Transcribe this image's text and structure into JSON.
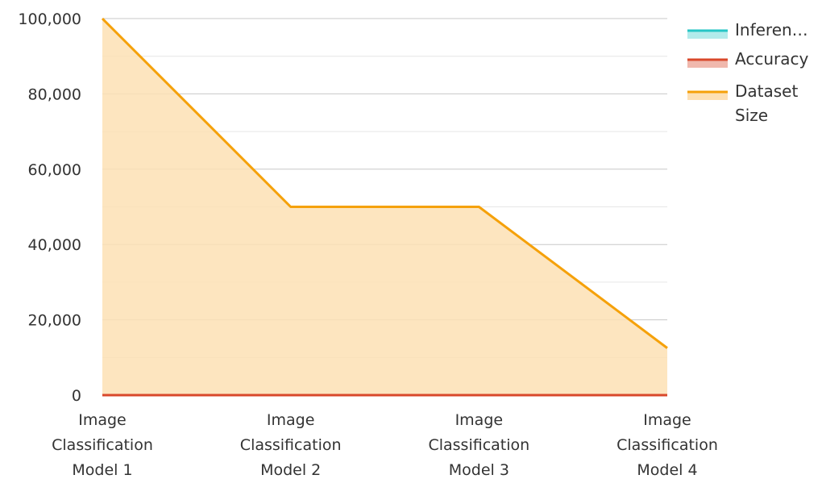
{
  "chart_data": {
    "type": "area",
    "title": "",
    "xlabel": "",
    "ylabel": "",
    "categories": [
      "Image Classification Model 1",
      "Image Classification Model 2",
      "Image Classification Model 3",
      "Image Classification Model 4"
    ],
    "category_lines": [
      [
        "Image",
        "Classification",
        "Model 1"
      ],
      [
        "Image",
        "Classification",
        "Model 2"
      ],
      [
        "Image",
        "Classification",
        "Model 3"
      ],
      [
        "Image",
        "Classification",
        "Model 4"
      ]
    ],
    "ylim": [
      0,
      100000
    ],
    "yticks": [
      0,
      20000,
      40000,
      60000,
      80000,
      100000
    ],
    "ytick_labels": [
      "0",
      "20,000",
      "40,000",
      "60,000",
      "80,000",
      "100,000"
    ],
    "grid": true,
    "legend_position": "right",
    "series": [
      {
        "name": "Inference Time",
        "legend_lines": [
          "Inferen…"
        ],
        "line_color": "#26c6c6",
        "fill_color": "#b2ebeb",
        "values": [
          0.05,
          0.1,
          0.15,
          0.2
        ]
      },
      {
        "name": "Accuracy",
        "legend_lines": [
          "Accuracy"
        ],
        "line_color": "#d9482b",
        "fill_color": "#f0b8ad",
        "values": [
          0.92,
          0.95,
          0.9,
          0.97
        ]
      },
      {
        "name": "Dataset Size",
        "legend_lines": [
          "Dataset",
          "Size"
        ],
        "line_color": "#f5a10a",
        "fill_color": "#fde0b4",
        "values": [
          100000,
          50000,
          50000,
          12500
        ]
      }
    ]
  }
}
